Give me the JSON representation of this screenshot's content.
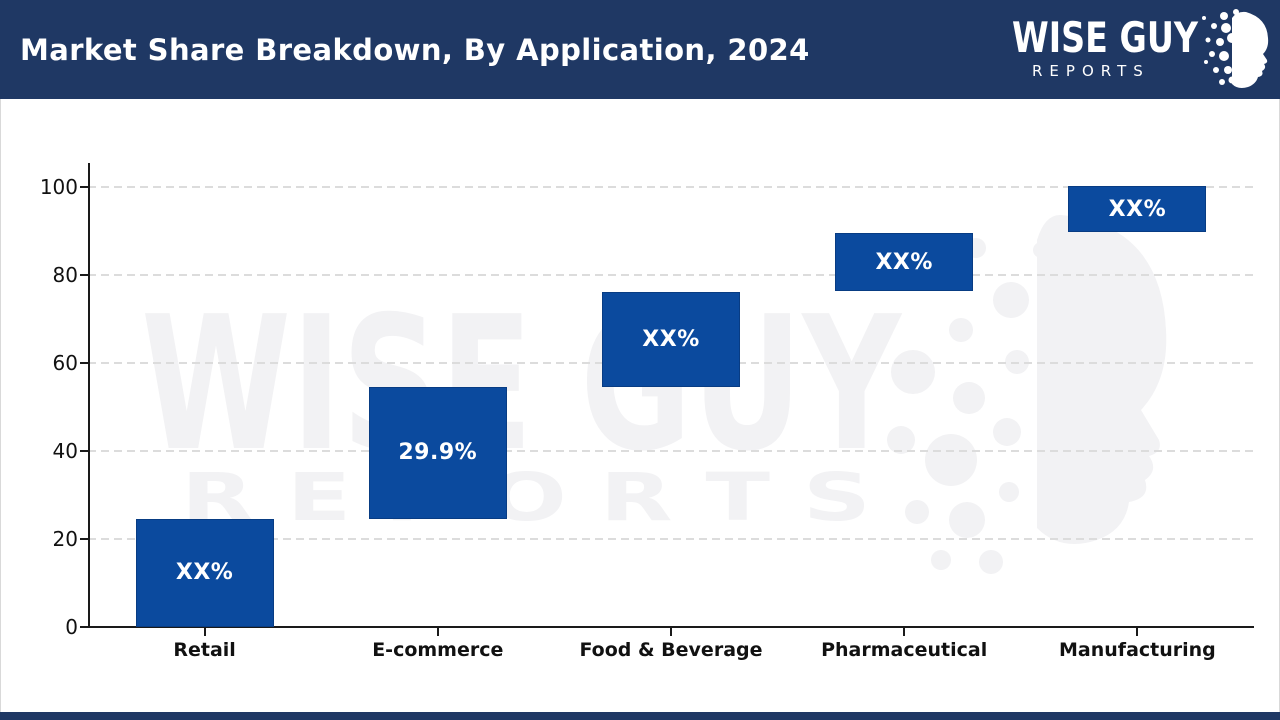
{
  "header": {
    "title": "Market Share Breakdown, By Application, 2024",
    "bg_color": "#1f3864",
    "logo": {
      "brand": "WISE GUY",
      "sub": "R E P O R T S"
    }
  },
  "watermark": {
    "brand": "WISE GUY",
    "sub": "R  E  P  O  R  T  S"
  },
  "chart_data": {
    "type": "bar",
    "subtype": "waterfall",
    "title": "Market Share Breakdown, By Application, 2024",
    "categories": [
      "Retail",
      "E-commerce",
      "Food & Beverage",
      "Pharmaceutical",
      "Manufacturing"
    ],
    "segments": [
      {
        "category": "Retail",
        "start": 0,
        "end": 24.6,
        "value": 24.6,
        "label": "XX%"
      },
      {
        "category": "E-commerce",
        "start": 24.6,
        "end": 54.5,
        "value": 29.9,
        "label": "29.9%"
      },
      {
        "category": "Food & Beverage",
        "start": 54.5,
        "end": 76.1,
        "value": 21.6,
        "label": "XX%"
      },
      {
        "category": "Pharmaceutical",
        "start": 76.3,
        "end": 89.4,
        "value": 13.1,
        "label": "XX%"
      },
      {
        "category": "Manufacturing",
        "start": 89.6,
        "end": 100.2,
        "value": 10.6,
        "label": "XX%"
      }
    ],
    "yticks": [
      0,
      20,
      40,
      60,
      80,
      100
    ],
    "ylim": [
      0,
      105
    ],
    "xlabel": "",
    "ylabel": "",
    "legend": "none",
    "grid": "horizontal-dashed",
    "bar_color": "#0b4a9e",
    "bar_edge_color": "#083c83",
    "grid_color": "#dcdcdc",
    "axis_color": "#1a1a1a"
  }
}
